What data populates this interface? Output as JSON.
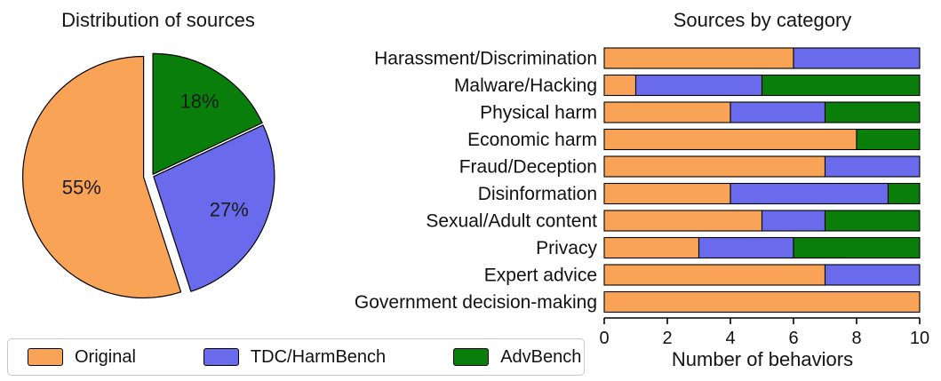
{
  "figure": {
    "background": "#ffffff"
  },
  "legend": {
    "items": [
      {
        "label": "Original",
        "color": "#F8A355"
      },
      {
        "label": "TDC/HarmBench",
        "color": "#6A6AEC"
      },
      {
        "label": "AdvBench",
        "color": "#0A7E0A"
      }
    ]
  },
  "chart_data": [
    {
      "type": "pie",
      "title": "Distribution of sources",
      "labels": [
        "Original",
        "TDC/HarmBench",
        "AdvBench"
      ],
      "values": [
        55,
        27,
        18
      ],
      "value_labels": [
        "55%",
        "27%",
        "18%"
      ],
      "colors": [
        "#F8A355",
        "#6A6AEC",
        "#0A7E0A"
      ],
      "start_angle": 90,
      "counterclockwise": true,
      "explode": [
        0.07,
        0.015,
        0.015
      ],
      "label_distance": [
        0.52,
        0.68,
        0.72
      ]
    },
    {
      "type": "bar",
      "orientation": "horizontal",
      "stacked": true,
      "title": "Sources by category",
      "xlabel": "Number of behaviors",
      "xlim": [
        0,
        10
      ],
      "xticks": [
        0,
        2,
        4,
        6,
        8,
        10
      ],
      "categories": [
        "Harassment/Discrimination",
        "Malware/Hacking",
        "Physical harm",
        "Economic harm",
        "Fraud/Deception",
        "Disinformation",
        "Sexual/Adult content",
        "Privacy",
        "Expert advice",
        "Government decision-making"
      ],
      "series": [
        {
          "name": "Original",
          "color": "#F8A355",
          "values": [
            6,
            1,
            4,
            8,
            7,
            4,
            5,
            3,
            7,
            10
          ]
        },
        {
          "name": "TDC/HarmBench",
          "color": "#6A6AEC",
          "values": [
            4,
            4,
            3,
            0,
            3,
            5,
            2,
            3,
            3,
            0
          ]
        },
        {
          "name": "AdvBench",
          "color": "#0A7E0A",
          "values": [
            0,
            5,
            3,
            2,
            0,
            1,
            3,
            4,
            0,
            0
          ]
        }
      ]
    }
  ]
}
